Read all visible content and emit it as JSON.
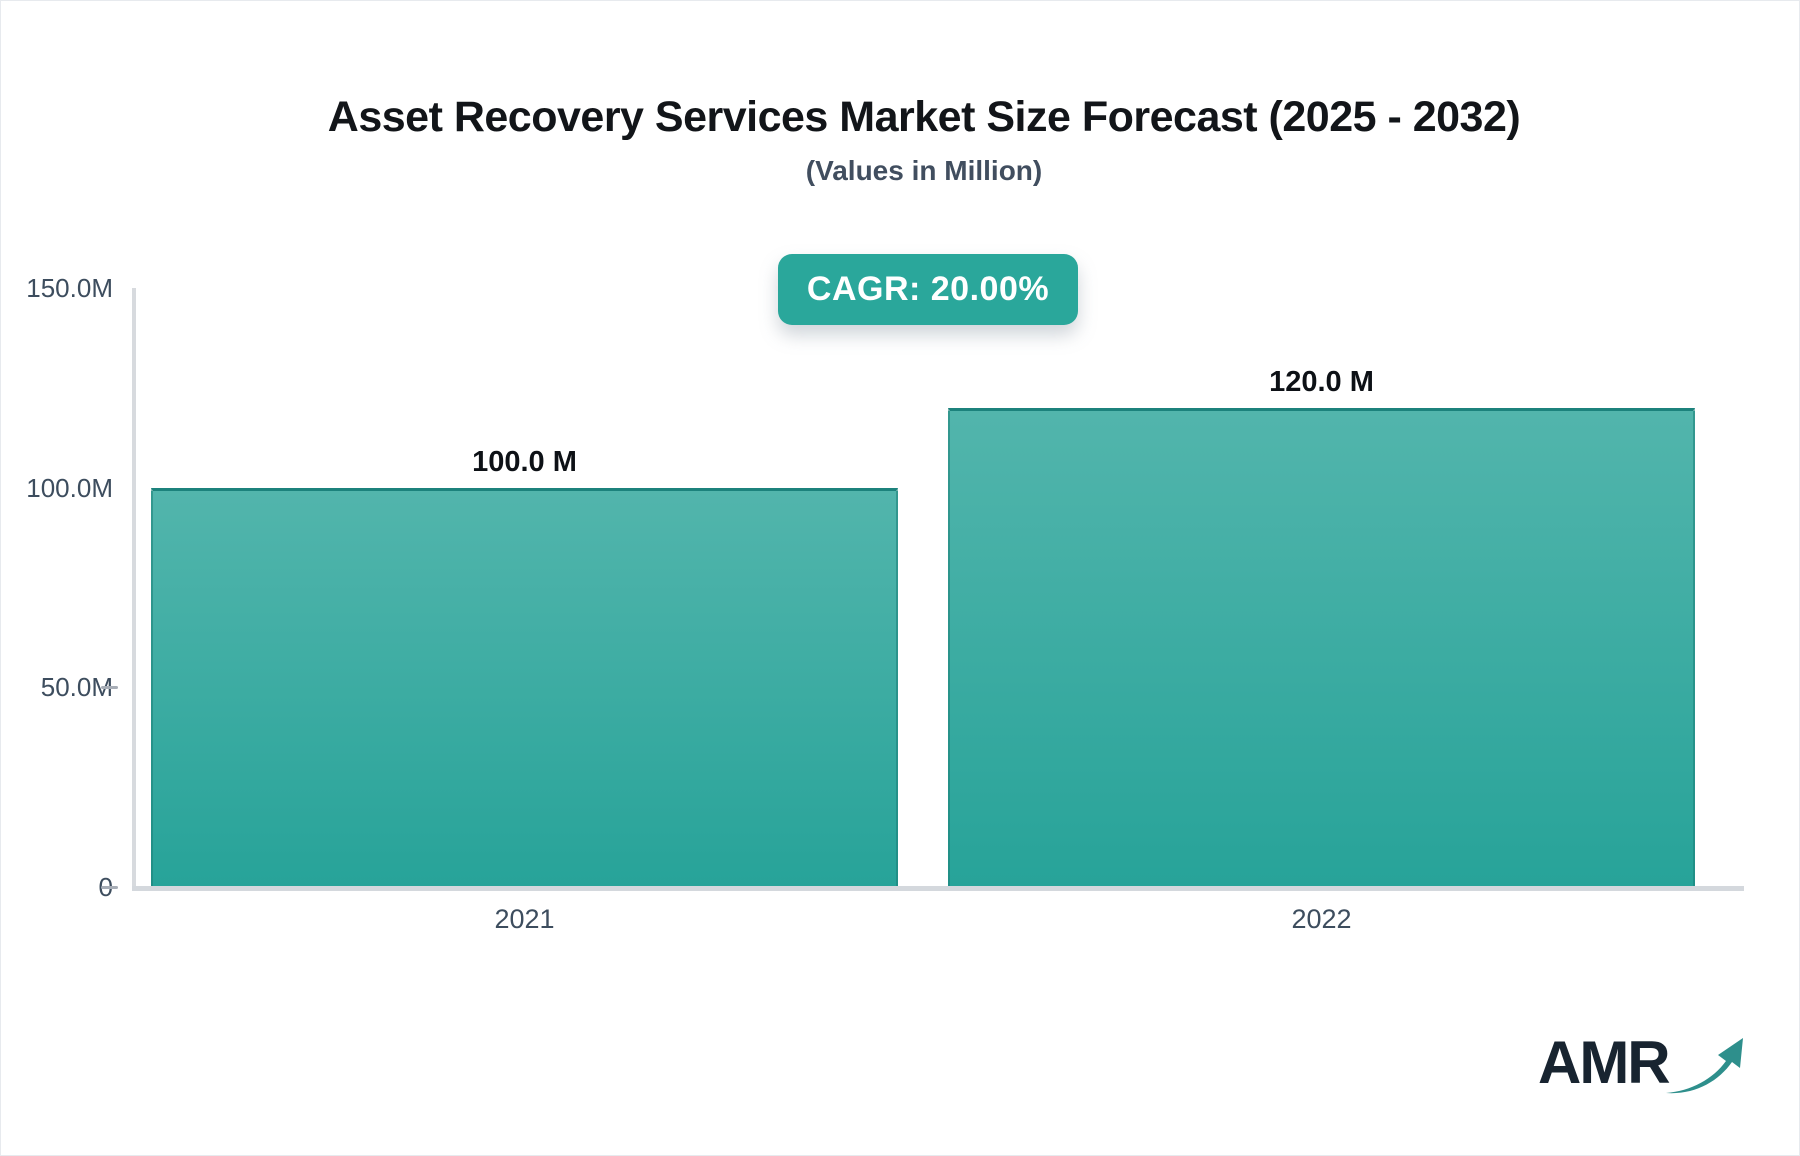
{
  "header": {
    "title": "Asset Recovery Services Market Size Forecast (2025 - 2032)",
    "subtitle": "(Values in Million)",
    "cagr_badge": "CAGR: 20.00%"
  },
  "chart_data": {
    "type": "bar",
    "title": "Asset Recovery Services Market Size Forecast (2025 - 2032)",
    "subtitle": "(Values in Million)",
    "unit": "Million",
    "cagr_percent": "20.00%",
    "categories": [
      "2021",
      "2022"
    ],
    "values": [
      100,
      120
    ],
    "bar_labels": [
      "100.0 M",
      "120.0 M"
    ],
    "ylim": [
      0,
      150
    ],
    "y_ticks": [
      {
        "label": "150.0M",
        "value": 150,
        "dash": false
      },
      {
        "label": "100.0M",
        "value": 100,
        "dash": false
      },
      {
        "label": "50.0M",
        "value": 50,
        "dash": true
      },
      {
        "label": "0",
        "value": 0,
        "dash": true
      }
    ],
    "grid": false,
    "legend": "none"
  },
  "colors": {
    "accent": "#2aa79b",
    "bar_gradient_top": "#52b5ac",
    "bar_gradient_bottom": "#27a399",
    "bar_border": "#1c827c",
    "axis_line": "#d7dade",
    "tick_text": "#3d4d5e",
    "title_text": "#121519",
    "subtitle_text": "#414e5f",
    "badge_text": "#ffffff",
    "logo_text_color": "#182430",
    "logo_arrow_color": "#2e8f8c"
  },
  "logo": {
    "text": "AMR"
  }
}
